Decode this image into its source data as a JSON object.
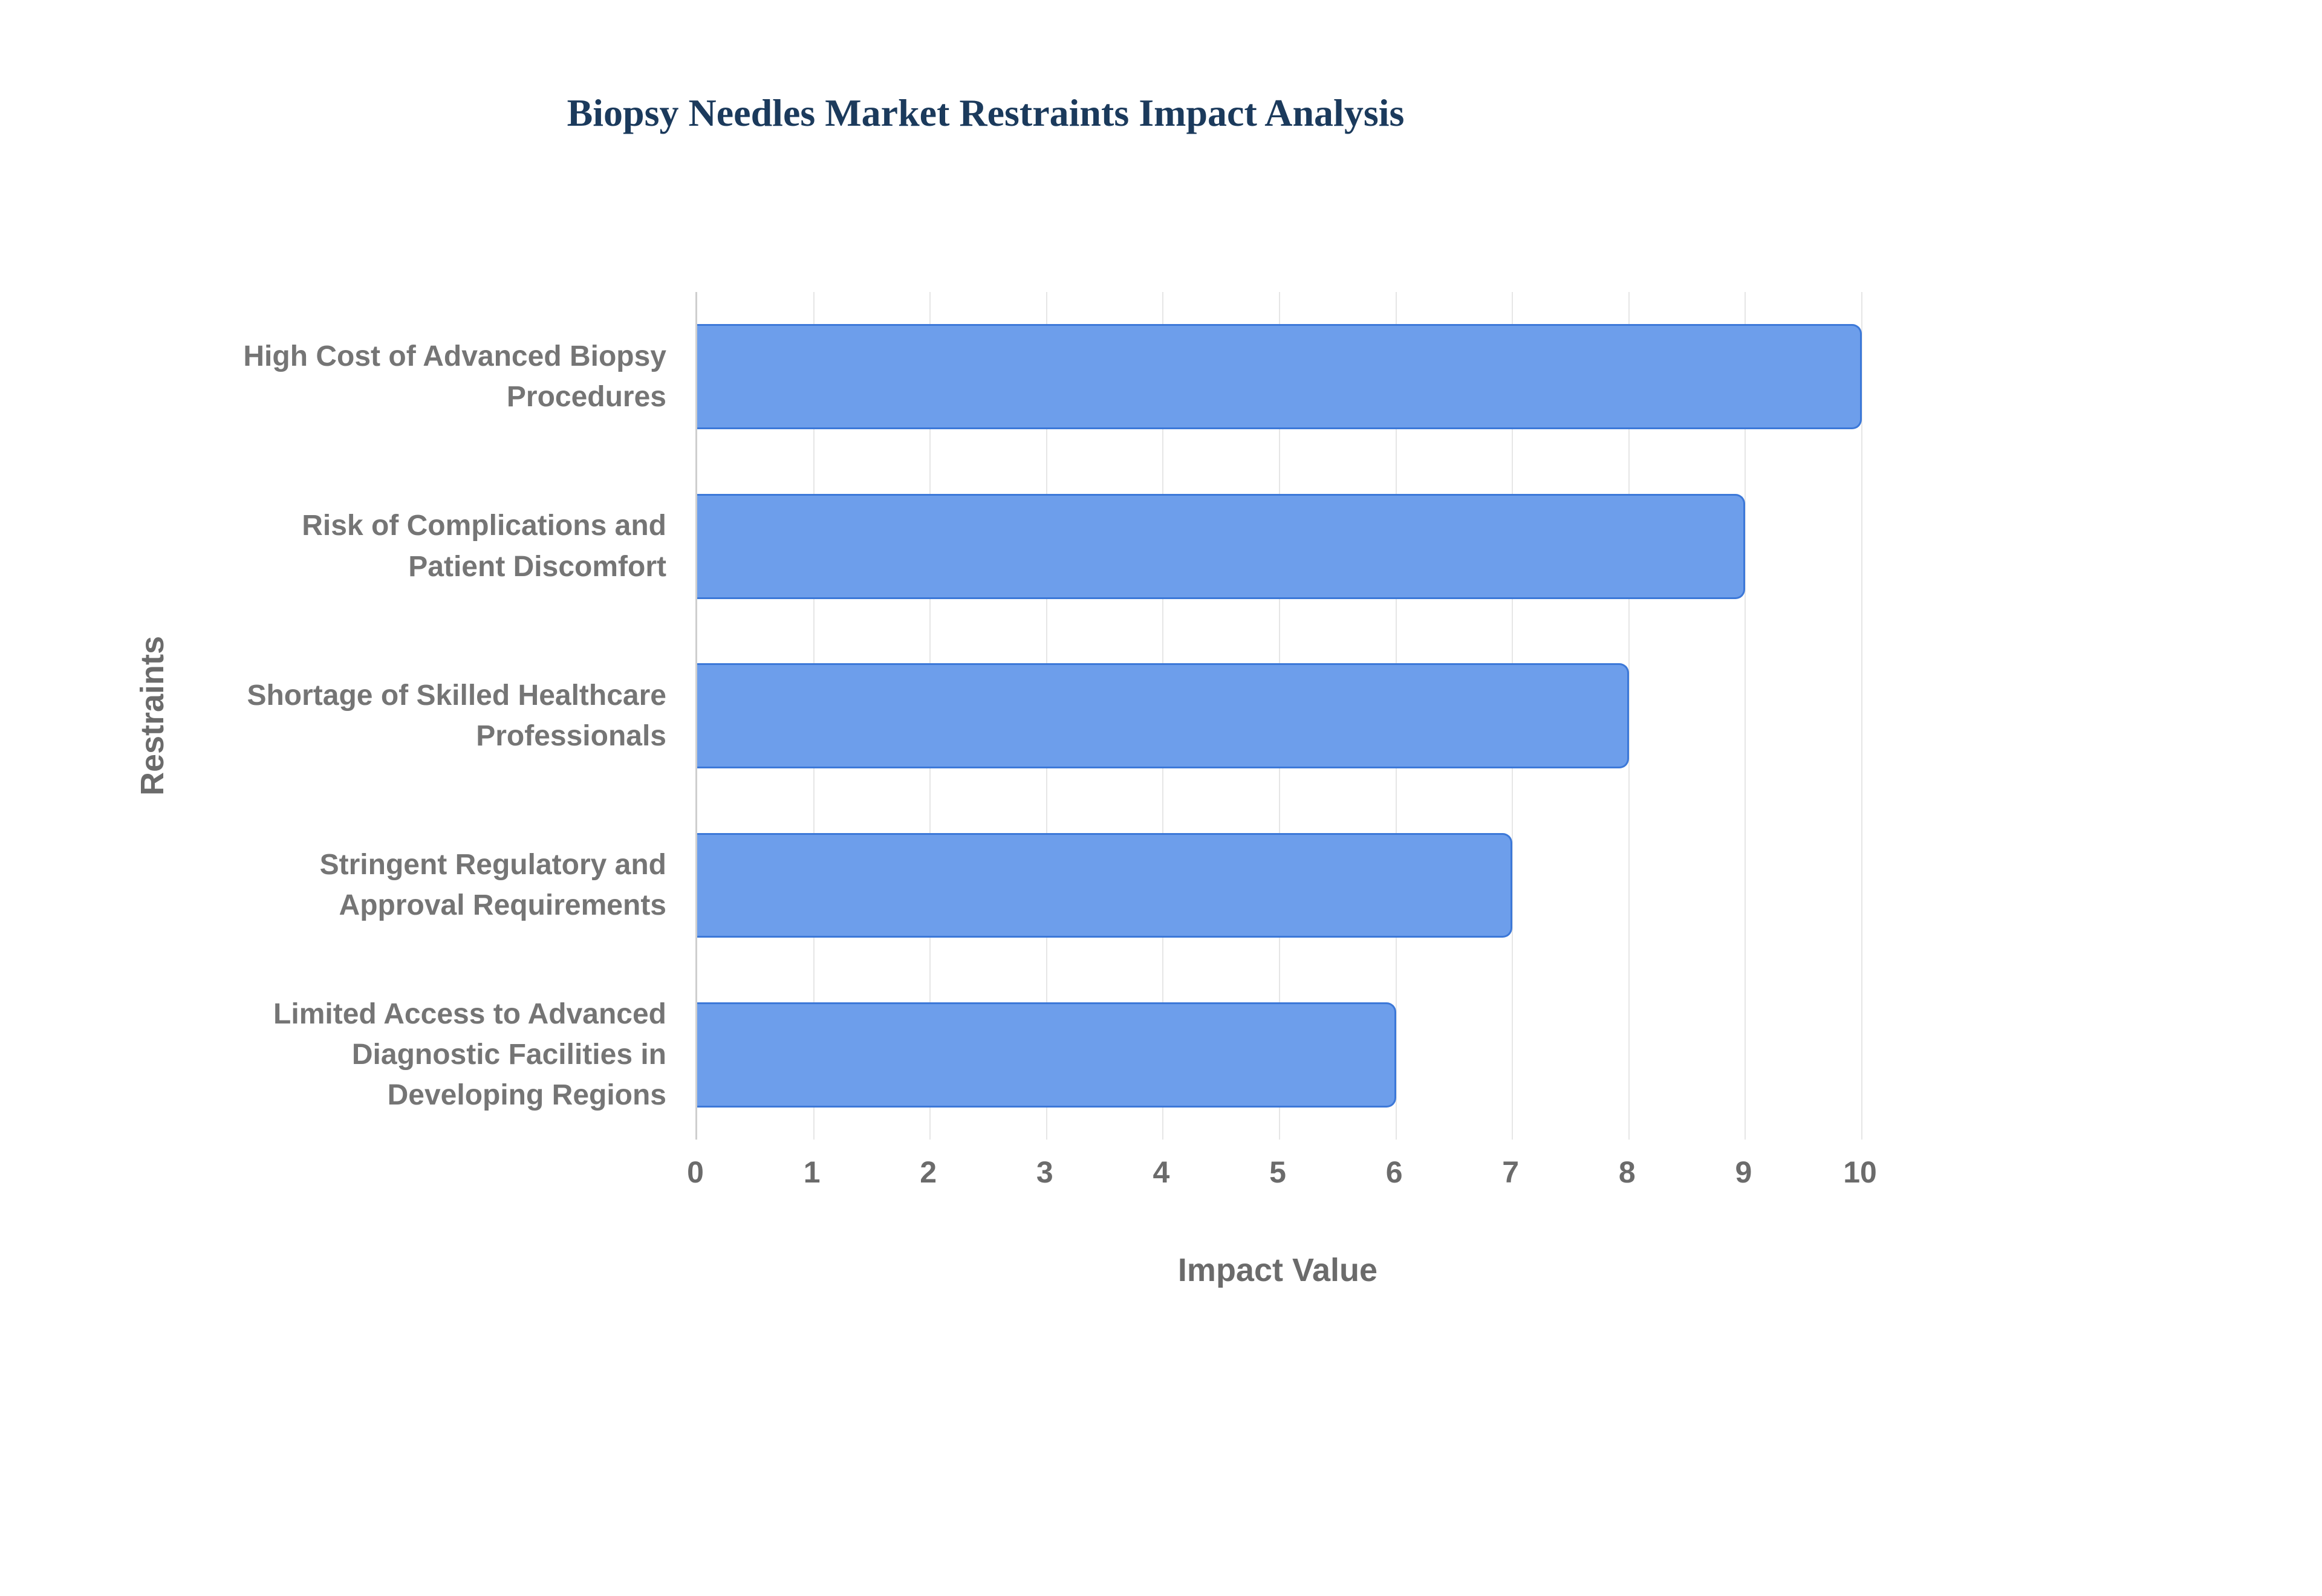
{
  "chart_data": {
    "type": "bar",
    "orientation": "horizontal",
    "title": "Biopsy Needles Market Restraints Impact Analysis",
    "xlabel": "Impact Value",
    "ylabel": "Restraints",
    "categories": [
      "High Cost of Advanced Biopsy Procedures",
      "Risk of Complications and Patient Discomfort",
      "Shortage of Skilled Healthcare Professionals",
      "Stringent Regulatory and Approval Requirements",
      "Limited Access to Advanced Diagnostic Facilities in Developing Regions"
    ],
    "values": [
      10,
      9,
      8,
      7,
      6
    ],
    "xlim": [
      0,
      10
    ],
    "xticks": [
      0,
      1,
      2,
      3,
      4,
      5,
      6,
      7,
      8,
      9,
      10
    ],
    "grid": true,
    "legend": "none",
    "bar_color": "#6d9eeb",
    "bar_border_color": "#3c78d8",
    "title_color": "#1b3a5c",
    "label_color": "#757575"
  }
}
